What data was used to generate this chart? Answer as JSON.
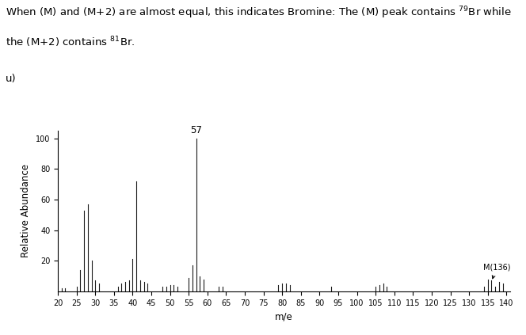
{
  "xlabel": "m/e",
  "ylabel": "Relative Abundance",
  "xlim": [
    20,
    141
  ],
  "ylim": [
    0,
    105
  ],
  "yticks": [
    20,
    40,
    60,
    80,
    100
  ],
  "xticks": [
    20,
    25,
    30,
    35,
    40,
    45,
    50,
    55,
    60,
    65,
    70,
    75,
    80,
    85,
    90,
    95,
    100,
    105,
    110,
    115,
    120,
    125,
    130,
    135,
    140
  ],
  "annotation_57": "57",
  "annotation_M136": "M(136)",
  "peaks": [
    [
      21,
      2
    ],
    [
      22,
      2
    ],
    [
      25,
      3
    ],
    [
      26,
      14
    ],
    [
      27,
      53
    ],
    [
      28,
      57
    ],
    [
      29,
      20
    ],
    [
      30,
      7
    ],
    [
      31,
      5
    ],
    [
      36,
      3
    ],
    [
      37,
      5
    ],
    [
      38,
      6
    ],
    [
      39,
      7
    ],
    [
      40,
      21
    ],
    [
      41,
      72
    ],
    [
      42,
      7
    ],
    [
      43,
      6
    ],
    [
      44,
      5
    ],
    [
      48,
      3
    ],
    [
      49,
      3
    ],
    [
      50,
      4
    ],
    [
      51,
      4
    ],
    [
      52,
      3
    ],
    [
      55,
      9
    ],
    [
      56,
      17
    ],
    [
      57,
      100
    ],
    [
      58,
      10
    ],
    [
      59,
      8
    ],
    [
      63,
      3
    ],
    [
      64,
      3
    ],
    [
      79,
      4
    ],
    [
      80,
      5
    ],
    [
      81,
      5
    ],
    [
      82,
      4
    ],
    [
      93,
      3
    ],
    [
      105,
      3
    ],
    [
      106,
      4
    ],
    [
      107,
      5
    ],
    [
      108,
      3
    ],
    [
      134,
      3
    ],
    [
      135,
      8
    ],
    [
      136,
      7
    ],
    [
      137,
      3
    ],
    [
      138,
      6
    ],
    [
      139,
      5
    ]
  ],
  "bar_color": "#1a1a1a",
  "bg_color": "#ffffff",
  "title_fontsize": 9.5,
  "axis_fontsize": 8.5,
  "tick_fontsize": 7,
  "annot_fontsize": 8.5,
  "title_line1": "When (M) and (M+2) are almost equal, this indicates Bromine: The (M) peak contains $^{79}$Br while",
  "title_line2_plain": "the (M+2) contains ",
  "title_line2_super": "81",
  "title_line2_end": "Br.",
  "subtitle": "u)"
}
